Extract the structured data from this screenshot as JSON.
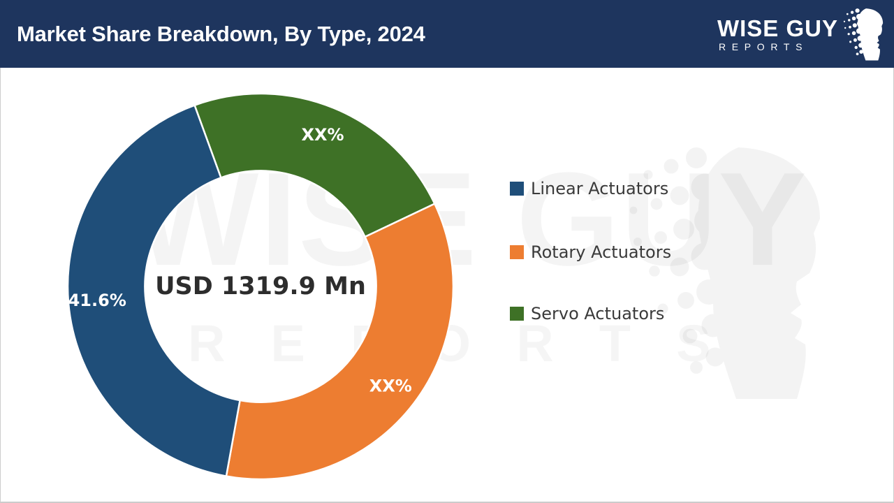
{
  "header": {
    "title": "Market Share Breakdown, By Type, 2024",
    "background_color": "#1E355E",
    "logo": {
      "line1": "WISE GUY",
      "line2": "REPORTS"
    }
  },
  "chart_data": {
    "type": "pie",
    "subtype": "donut",
    "title": "Market Share Breakdown, By Type, 2024",
    "center_label": "USD 1319.9 Mn",
    "total": {
      "value": 1319.9,
      "units": "USD Mn"
    },
    "inner_radius_ratio": 0.6,
    "start_angle_deg": 110,
    "direction": "clockwise",
    "legend_position": "right",
    "grid": false,
    "slices": [
      {
        "name": "Linear Actuators",
        "color": "#1F4E79",
        "pct": 41.6,
        "label": "41.6%"
      },
      {
        "name": "Rotary Actuators",
        "color": "#ED7D31",
        "pct": 34.9,
        "label": "XX%"
      },
      {
        "name": "Servo Actuators",
        "color": "#3E7126",
        "pct": 23.5,
        "label": "XX%"
      }
    ]
  },
  "watermark": {
    "line1": "WISE GUY",
    "line2": "REPORTS"
  }
}
